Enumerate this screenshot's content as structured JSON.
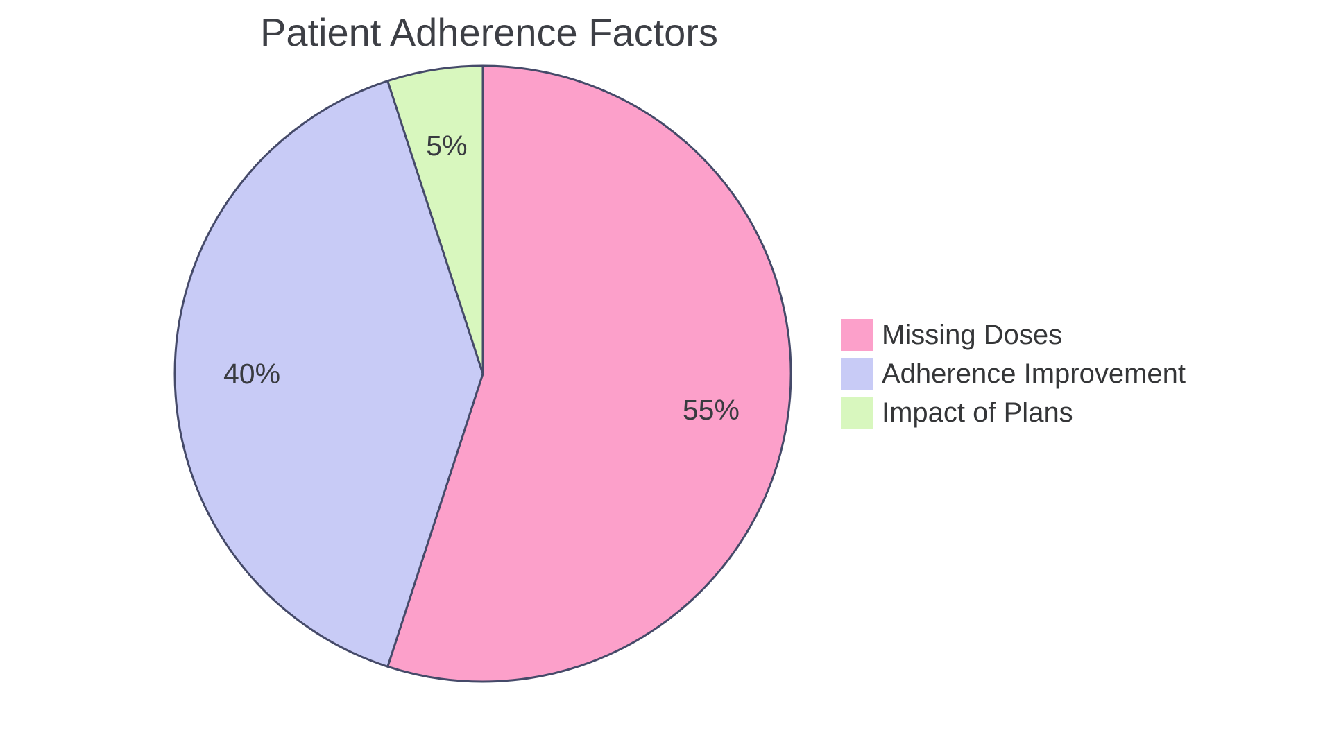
{
  "page": {
    "background_color": "#ffffff"
  },
  "chart_data": {
    "type": "pie",
    "title": "Patient Adherence Factors",
    "categories": [
      "Missing Doses",
      "Adherence Improvement",
      "Impact of Plans"
    ],
    "values": [
      55,
      40,
      5
    ],
    "slices": [
      {
        "label": "Missing Doses",
        "value": 55,
        "percent_label": "55%",
        "color": "#FCA0CA"
      },
      {
        "label": "Adherence Improvement",
        "value": 40,
        "percent_label": "40%",
        "color": "#C8CBF6"
      },
      {
        "label": "Impact of Plans",
        "value": 5,
        "percent_label": "5%",
        "color": "#D8F7BE"
      }
    ],
    "start_angle": "12-oclock",
    "direction": "clockwise",
    "legend_position": "right-middle",
    "grid": false,
    "stroke_color": "#454A69",
    "title_color": "#3D3F45",
    "percent_label_color": "#393B40",
    "legend_text_color": "#353638"
  }
}
